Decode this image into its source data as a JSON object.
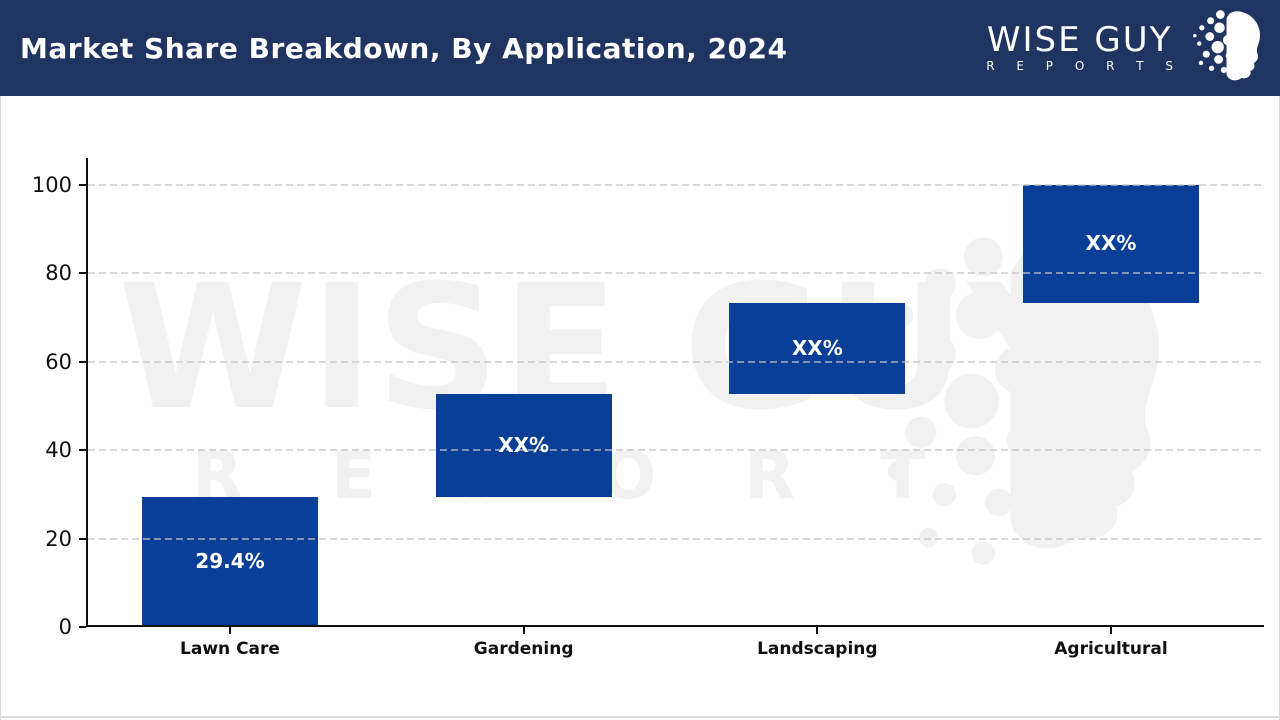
{
  "header": {
    "title": "Market Share Breakdown, By Application, 2024",
    "logo": {
      "line1": "WISE GUY",
      "line2": "R E P O R T S"
    }
  },
  "watermark": {
    "line1": "WISE GUY",
    "line2": "REPORTS"
  },
  "chart_data": {
    "type": "bar",
    "subtype": "waterfall",
    "title": "Market Share Breakdown, By Application, 2024",
    "categories": [
      "Lawn Care",
      "Gardening",
      "Landscaping",
      "Agricultural"
    ],
    "segments": [
      {
        "category": "Lawn Care",
        "start": 0,
        "end": 29.4,
        "label": "29.4%"
      },
      {
        "category": "Gardening",
        "start": 29.4,
        "end": 52.7,
        "label": "XX%"
      },
      {
        "category": "Landscaping",
        "start": 52.7,
        "end": 73.3,
        "label": "XX%"
      },
      {
        "category": "Agricultural",
        "start": 73.3,
        "end": 100,
        "label": "XX%"
      }
    ],
    "ylim": [
      0,
      100
    ],
    "yticks": [
      0,
      20,
      40,
      60,
      80,
      100
    ],
    "xlabel": "",
    "ylabel": "",
    "grid": "horizontal-dashed, drawn above bars",
    "legend": "none"
  },
  "colors": {
    "header_bg": "#1f3461",
    "bar": "#0a3f97",
    "bar_label": "#ffffff",
    "grid": "#dcdcdc",
    "axis": "#111111",
    "watermark": "#f1f1f1",
    "edge_hairline": "#d9d9d9"
  }
}
